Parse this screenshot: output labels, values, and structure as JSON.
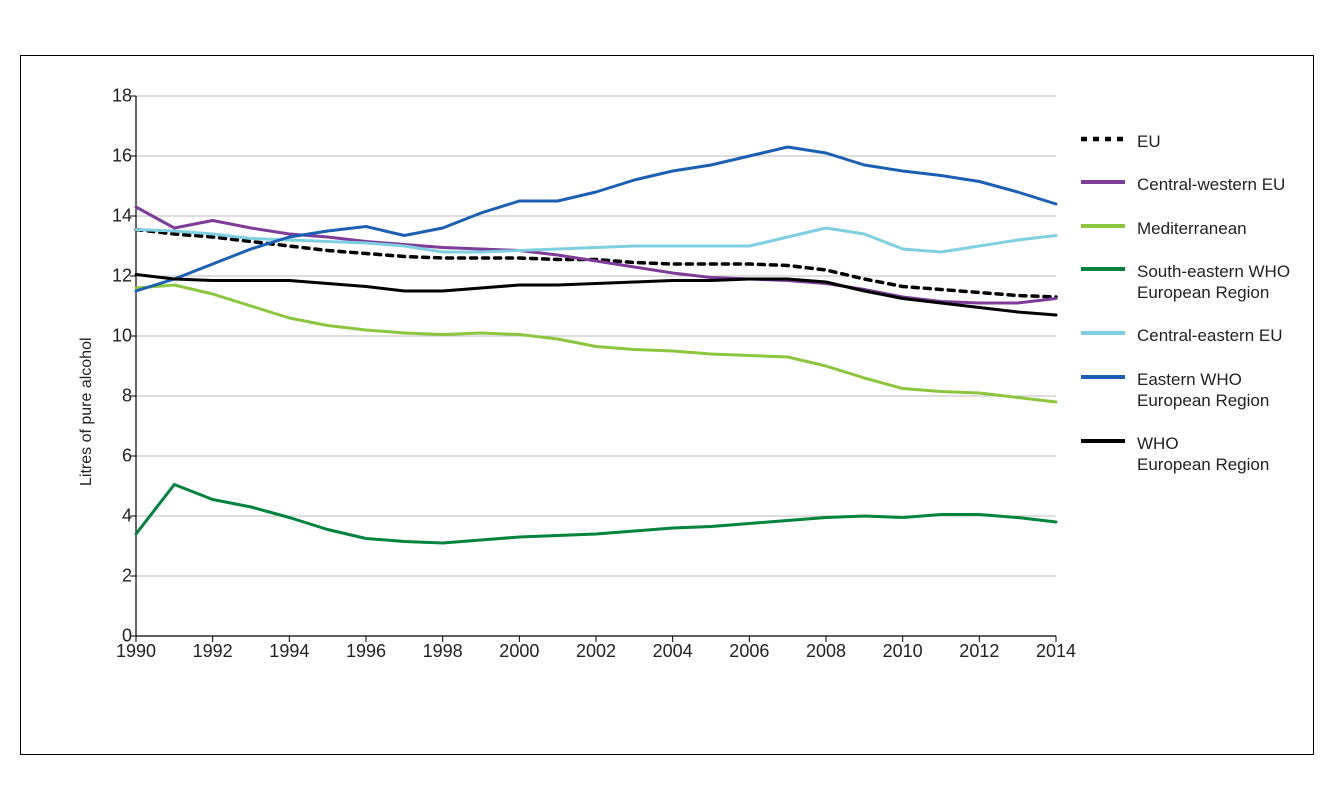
{
  "chart": {
    "type": "line",
    "background_color": "#ffffff",
    "border_color": "#000000",
    "grid_color": "#bdbdbd",
    "axis_color": "#000000",
    "text_color": "#222222",
    "font_family": "Arial",
    "tick_fontsize": 18,
    "y_axis_title": "Litres of pure alcohol",
    "y_axis_title_fontsize": 16,
    "xlim": [
      1990,
      2014
    ],
    "ylim": [
      0,
      18
    ],
    "x_ticks": [
      1990,
      1992,
      1994,
      1996,
      1998,
      2000,
      2002,
      2004,
      2006,
      2008,
      2010,
      2012,
      2014
    ],
    "y_ticks": [
      0,
      2,
      4,
      6,
      8,
      10,
      12,
      14,
      16,
      18
    ],
    "y_grid": [
      2,
      4,
      6,
      8,
      10,
      12,
      14,
      16,
      18
    ],
    "line_width": 3,
    "series_x": [
      1990,
      1991,
      1992,
      1993,
      1994,
      1995,
      1996,
      1997,
      1998,
      1999,
      2000,
      2001,
      2002,
      2003,
      2004,
      2005,
      2006,
      2007,
      2008,
      2009,
      2010,
      2011,
      2012,
      2013,
      2014
    ],
    "series": [
      {
        "id": "eu",
        "label": "EU",
        "color": "#000000",
        "dash": "6,6",
        "width": 3.5,
        "y": [
          13.55,
          13.4,
          13.3,
          13.15,
          13.0,
          12.85,
          12.75,
          12.65,
          12.6,
          12.6,
          12.6,
          12.55,
          12.55,
          12.45,
          12.4,
          12.4,
          12.4,
          12.35,
          12.2,
          11.9,
          11.65,
          11.55,
          11.45,
          11.35,
          11.3
        ]
      },
      {
        "id": "central_western_eu",
        "label": "Central-western EU",
        "color": "#7d3c98",
        "dash": "",
        "width": 3,
        "y": [
          14.3,
          13.6,
          13.85,
          13.6,
          13.4,
          13.3,
          13.15,
          13.05,
          12.95,
          12.9,
          12.85,
          12.7,
          12.5,
          12.3,
          12.1,
          11.95,
          11.9,
          11.85,
          11.75,
          11.55,
          11.3,
          11.15,
          11.1,
          11.1,
          11.25
        ]
      },
      {
        "id": "mediterranean",
        "label": "Mediterranean",
        "color": "#8cc63f",
        "dash": "",
        "width": 3,
        "y": [
          11.6,
          11.7,
          11.4,
          11.0,
          10.6,
          10.35,
          10.2,
          10.1,
          10.05,
          10.1,
          10.05,
          9.9,
          9.65,
          9.55,
          9.5,
          9.4,
          9.35,
          9.3,
          9.0,
          8.6,
          8.25,
          8.15,
          8.1,
          7.95,
          7.8
        ]
      },
      {
        "id": "south_eastern_who",
        "label": "South-eastern WHO European Region",
        "color": "#00843d",
        "dash": "",
        "width": 3,
        "y": [
          3.4,
          5.05,
          4.55,
          4.3,
          3.95,
          3.55,
          3.25,
          3.15,
          3.1,
          3.2,
          3.3,
          3.35,
          3.4,
          3.5,
          3.6,
          3.65,
          3.75,
          3.85,
          3.95,
          4.0,
          3.95,
          4.05,
          4.05,
          3.95,
          3.8
        ]
      },
      {
        "id": "central_eastern_eu",
        "label": "Central-eastern EU",
        "color": "#7ed0e0",
        "dash": "",
        "width": 3,
        "y": [
          13.55,
          13.5,
          13.4,
          13.25,
          13.2,
          13.15,
          13.1,
          13.0,
          12.8,
          12.8,
          12.85,
          12.9,
          12.95,
          13.0,
          13.0,
          13.0,
          13.0,
          13.3,
          13.6,
          13.4,
          12.9,
          12.8,
          13.0,
          13.2,
          13.35
        ]
      },
      {
        "id": "eastern_who",
        "label": "Eastern WHO European Region",
        "color": "#1a5fb4",
        "dash": "",
        "width": 3,
        "y": [
          11.5,
          11.9,
          12.4,
          12.9,
          13.3,
          13.5,
          13.65,
          13.35,
          13.6,
          14.1,
          14.5,
          14.5,
          14.8,
          15.2,
          15.5,
          15.7,
          16.0,
          16.3,
          16.1,
          15.7,
          15.5,
          15.35,
          15.15,
          14.8,
          14.4
        ]
      },
      {
        "id": "who_european_region",
        "label": "WHO European Region",
        "color": "#000000",
        "dash": "",
        "width": 3,
        "y": [
          12.05,
          11.9,
          11.85,
          11.85,
          11.85,
          11.75,
          11.65,
          11.5,
          11.5,
          11.6,
          11.7,
          11.7,
          11.75,
          11.8,
          11.85,
          11.85,
          11.9,
          11.9,
          11.8,
          11.5,
          11.25,
          11.1,
          10.95,
          10.8,
          10.7
        ]
      }
    ],
    "legend": {
      "swatch_width": 44,
      "label_fontsize": 17,
      "item_spacing": 22
    }
  }
}
